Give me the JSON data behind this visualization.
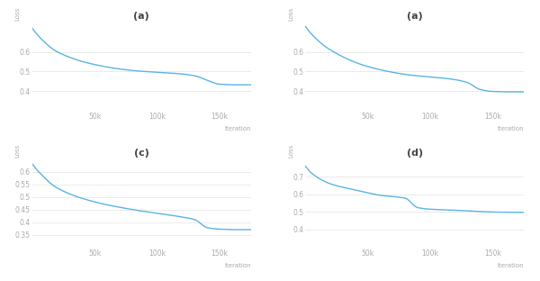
{
  "panels": [
    {
      "label": "(a)",
      "ylim": [
        0.3,
        0.75
      ],
      "yticks": [
        0.4,
        0.5,
        0.6
      ],
      "keypoints_x": [
        0,
        5000,
        20000,
        50000,
        80000,
        120000,
        130000,
        140000,
        150000,
        165000,
        175000
      ],
      "keypoints_y": [
        0.72,
        0.68,
        0.6,
        0.535,
        0.505,
        0.487,
        0.478,
        0.455,
        0.435,
        0.432,
        0.432
      ]
    },
    {
      "label": "(a)",
      "ylim": [
        0.3,
        0.75
      ],
      "yticks": [
        0.4,
        0.5,
        0.6
      ],
      "keypoints_x": [
        0,
        5000,
        20000,
        50000,
        80000,
        120000,
        130000,
        140000,
        150000,
        165000,
        175000
      ],
      "keypoints_y": [
        0.73,
        0.69,
        0.61,
        0.525,
        0.485,
        0.458,
        0.443,
        0.408,
        0.398,
        0.396,
        0.396
      ]
    },
    {
      "label": "(c)",
      "ylim": [
        0.3,
        0.65
      ],
      "yticks": [
        0.35,
        0.4,
        0.45,
        0.5,
        0.55,
        0.6
      ],
      "keypoints_x": [
        0,
        5000,
        20000,
        50000,
        80000,
        120000,
        130000,
        140000,
        150000,
        165000,
        175000
      ],
      "keypoints_y": [
        0.63,
        0.6,
        0.535,
        0.48,
        0.45,
        0.42,
        0.41,
        0.378,
        0.372,
        0.37,
        0.37
      ]
    },
    {
      "label": "(d)",
      "ylim": [
        0.3,
        0.8
      ],
      "yticks": [
        0.4,
        0.5,
        0.6,
        0.7
      ],
      "keypoints_x": [
        0,
        5000,
        20000,
        40000,
        60000,
        80000,
        90000,
        100000,
        120000,
        150000,
        175000
      ],
      "keypoints_y": [
        0.76,
        0.72,
        0.66,
        0.625,
        0.595,
        0.578,
        0.525,
        0.516,
        0.51,
        0.5,
        0.498
      ]
    }
  ],
  "line_color": "#5ab4e5",
  "line_width": 1.0,
  "background_color": "#ffffff",
  "grid_color": "#e8e8e8",
  "tick_color": "#aaaaaa",
  "label_color": "#aaaaaa",
  "title_color": "#444444",
  "max_iter": 175000,
  "xticks": [
    50000,
    100000,
    150000
  ],
  "xtick_labels": [
    "50k",
    "100k",
    "150k"
  ]
}
